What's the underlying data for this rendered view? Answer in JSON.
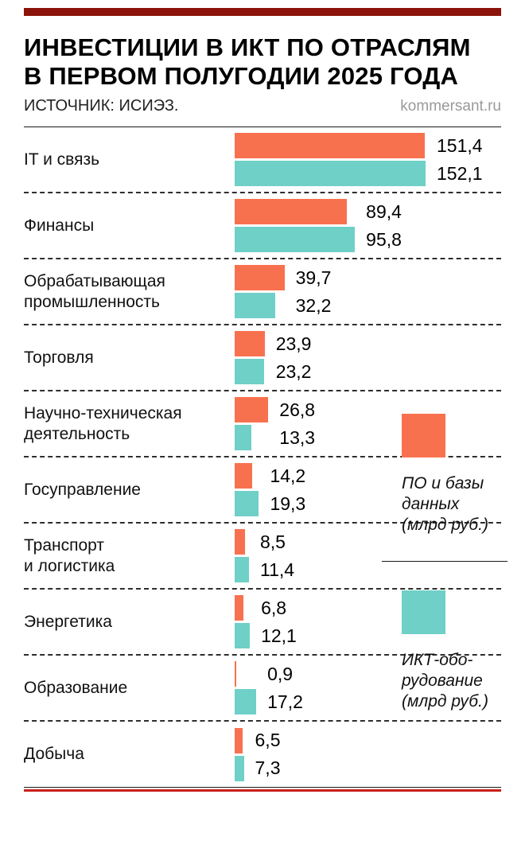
{
  "meta": {
    "title_line1": "ИНВЕСТИЦИИ В ИКТ ПО ОТРАСЛЯМ",
    "title_line2": "В ПЕРВОМ ПОЛУГОДИИ 2025 ГОДА",
    "source": "ИСТОЧНИК: ИСИЭЗ.",
    "site": "kommersant.ru"
  },
  "colors": {
    "bar_software": "#f8714f",
    "bar_equipment": "#6fd0c7",
    "top_strip": "#8c1309",
    "bottom_strip": "#c8201a",
    "site_gray": "#9a9a9a"
  },
  "chart_data": {
    "type": "bar",
    "orientation": "horizontal",
    "title": "ИНВЕСТИЦИИ В ИКТ ПО ОТРАСЛЯМ В ПЕРВОМ ПОЛУГОДИИ 2025 ГОДА",
    "source": "ИСИЭЗ",
    "unit": "млрд руб.",
    "xlim": [
      0,
      155
    ],
    "grid": false,
    "legend_position": "right-middle",
    "categories": [
      "IT и связь",
      "Финансы",
      "Обрабатывающая промышленность",
      "Торговля",
      "Научно-техническая деятельность",
      "Госуправление",
      "Транспорт и логистика",
      "Энергетика",
      "Образование",
      "Добыча"
    ],
    "category_lines": [
      [
        "IT и связь"
      ],
      [
        "Финансы"
      ],
      [
        "Обрабатывающая",
        "промышленность"
      ],
      [
        "Торговля"
      ],
      [
        "Научно-техническая",
        "деятельность"
      ],
      [
        "Госуправление"
      ],
      [
        "Транспорт",
        "и логистика"
      ],
      [
        "Энергетика"
      ],
      [
        "Образование"
      ],
      [
        "Добыча"
      ]
    ],
    "series": [
      {
        "name": "ПО и базы данных (млрд руб.)",
        "color": "#f8714f",
        "values": [
          151.4,
          89.4,
          39.7,
          23.9,
          26.8,
          14.2,
          8.5,
          6.8,
          0.9,
          6.5
        ]
      },
      {
        "name": "ИКТ-оборудование (млрд руб.)",
        "color": "#6fd0c7",
        "values": [
          152.1,
          95.8,
          32.2,
          23.2,
          13.3,
          19.3,
          11.4,
          12.1,
          17.2,
          7.3
        ]
      }
    ],
    "value_labels": [
      [
        "151,4",
        "152,1"
      ],
      [
        "89,4",
        "95,8"
      ],
      [
        "39,7",
        "32,2"
      ],
      [
        "23,9",
        "23,2"
      ],
      [
        "26,8",
        "13,3"
      ],
      [
        "14,2",
        "19,3"
      ],
      [
        "8,5",
        "11,4"
      ],
      [
        "6,8",
        "12,1"
      ],
      [
        "0,9",
        "17,2"
      ],
      [
        "6,5",
        "7,3"
      ]
    ]
  },
  "legend": {
    "item1": {
      "color": "#f8714f",
      "lines": [
        "ПО и базы",
        "данных",
        "(млрд руб.)"
      ]
    },
    "item2": {
      "color": "#6fd0c7",
      "lines": [
        "ИКТ-обо-",
        "рудование",
        "(млрд руб.)"
      ]
    }
  }
}
